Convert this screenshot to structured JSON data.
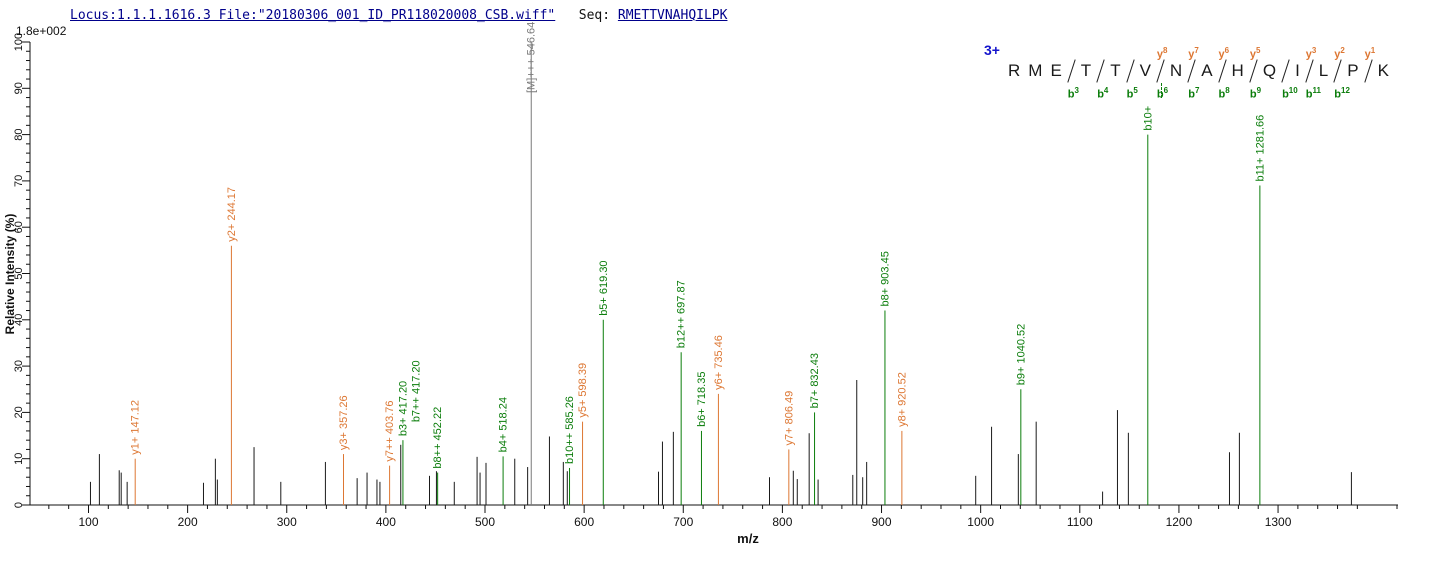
{
  "header": {
    "locus_file": "Locus:1.1.1.1616.3 File:\"20180306_001_ID_PR118020008_CSB.wiff\"",
    "separator": "   ",
    "seq_label": "Seq: ",
    "seq_value": "RMETTVNAHQILPK"
  },
  "colors": {
    "header_link": "#00008B",
    "charge_blue": "#1414CC",
    "y_ion": "#DD7733",
    "b_ion": "#0B7D0B",
    "precursor": "#7A7A7A",
    "peak_black": "#1A1A1A"
  },
  "sequence_panel": {
    "charge_label": "3+",
    "residues": [
      "R",
      "M",
      "E",
      "T",
      "T",
      "V",
      "N",
      "A",
      "H",
      "Q",
      "I",
      "L",
      "P",
      "K"
    ],
    "gaps": [
      {
        "after": 3,
        "b": "b3"
      },
      {
        "after": 4,
        "b": "b4"
      },
      {
        "after": 5,
        "b": "b5"
      },
      {
        "after": 6,
        "b": "b6",
        "y": "y8",
        "dashed": true
      },
      {
        "after": 7,
        "b": "b7",
        "y": "y7"
      },
      {
        "after": 8,
        "b": "b8",
        "y": "y6"
      },
      {
        "after": 9,
        "b": "b9",
        "y": "y5"
      },
      {
        "after": 10,
        "b": "b10"
      },
      {
        "after": 11,
        "b": "b11",
        "y": "y3"
      },
      {
        "after": 12,
        "b": "b12",
        "y": "y2"
      },
      {
        "after": 13,
        "y": "y1"
      }
    ]
  },
  "chart_data": {
    "type": "bar",
    "subtype": "mass-spectrum-stick-plot",
    "title": "",
    "xlabel": "m/z",
    "ylabel": "Relative  Intensity (%)",
    "scale_note": "1.8e+002",
    "xlim": [
      41,
      1421
    ],
    "ylim": [
      0,
      100
    ],
    "x_major_ticks": [
      100,
      200,
      300,
      400,
      500,
      600,
      700,
      800,
      900,
      1000,
      1100,
      1200,
      1300
    ],
    "x_minor_step": 20,
    "y_major_ticks": [
      0,
      10,
      20,
      30,
      40,
      50,
      60,
      70,
      80,
      90,
      100
    ],
    "y_minor_step": 2,
    "grid": false,
    "legend": "none",
    "annotated_peaks": [
      {
        "series": "y",
        "label": "y1+ 147.12",
        "mz": 147.12,
        "intensity": 10
      },
      {
        "series": "y",
        "label": "y2+ 244.17",
        "mz": 244.17,
        "intensity": 56
      },
      {
        "series": "y",
        "label": "y3+ 357.26",
        "mz": 357.26,
        "intensity": 11
      },
      {
        "series": "y",
        "label": "y7++ 403.76",
        "mz": 403.76,
        "intensity": 8.5
      },
      {
        "series": "b",
        "label": "b3+ 417.20",
        "mz": 417.2,
        "intensity": 14
      },
      {
        "series": "b",
        "label": "b7++ 417.20",
        "mz": 417.2,
        "intensity": 14,
        "no_stick": true,
        "dx": 13,
        "dy": -14
      },
      {
        "series": "b",
        "label": "b8++ 452.22",
        "mz": 452.22,
        "intensity": 7
      },
      {
        "series": "b",
        "label": "b4+ 518.24",
        "mz": 518.24,
        "intensity": 10.5
      },
      {
        "series": "M",
        "label": "[M]+++ 546.64",
        "mz": 546.64,
        "intensity": 100,
        "dy": 55
      },
      {
        "series": "b",
        "label": "b10++ 585.26",
        "mz": 585.26,
        "intensity": 8
      },
      {
        "series": "y",
        "label": "y5+ 598.39",
        "mz": 598.39,
        "intensity": 18
      },
      {
        "series": "b",
        "label": "b5+ 619.30",
        "mz": 619.3,
        "intensity": 40
      },
      {
        "series": "b",
        "label": "b12++ 697.87",
        "mz": 697.87,
        "intensity": 33
      },
      {
        "series": "b",
        "label": "b6+ 718.35",
        "mz": 718.35,
        "intensity": 16
      },
      {
        "series": "y",
        "label": "y6+ 735.46",
        "mz": 735.46,
        "intensity": 24
      },
      {
        "series": "y",
        "label": "y7+ 806.49",
        "mz": 806.49,
        "intensity": 12
      },
      {
        "series": "b",
        "label": "b7+ 832.43",
        "mz": 832.43,
        "intensity": 20
      },
      {
        "series": "b",
        "label": "b8+ 903.45",
        "mz": 903.45,
        "intensity": 42
      },
      {
        "series": "y",
        "label": "y8+ 920.52",
        "mz": 920.52,
        "intensity": 16
      },
      {
        "series": "b",
        "label": "b9+ 1040.52",
        "mz": 1040.52,
        "intensity": 25
      },
      {
        "series": "b",
        "label": "b10+",
        "mz": 1168.6,
        "intensity": 80
      },
      {
        "series": "b",
        "label": "b11+ 1281.66",
        "mz": 1281.66,
        "intensity": 69
      }
    ],
    "unlabeled_peaks": [
      [
        102,
        5
      ],
      [
        111,
        11
      ],
      [
        131,
        7.5
      ],
      [
        133,
        7
      ],
      [
        139,
        5
      ],
      [
        216,
        4.8
      ],
      [
        228,
        10
      ],
      [
        230,
        5.5
      ],
      [
        267,
        12.5
      ],
      [
        294,
        5
      ],
      [
        339,
        9.3
      ],
      [
        371,
        5.8
      ],
      [
        381,
        7
      ],
      [
        391,
        5.5
      ],
      [
        394,
        5
      ],
      [
        415,
        13
      ],
      [
        444,
        6.3
      ],
      [
        451,
        7.3
      ],
      [
        469,
        5
      ],
      [
        492,
        10.4
      ],
      [
        495,
        7
      ],
      [
        501,
        9.1
      ],
      [
        530,
        10
      ],
      [
        543,
        8.2
      ],
      [
        565,
        14.8
      ],
      [
        579,
        9.3
      ],
      [
        583,
        7.3
      ],
      [
        675,
        7.2
      ],
      [
        679,
        13.7
      ],
      [
        690,
        15.8
      ],
      [
        787,
        6
      ],
      [
        811,
        7.4
      ],
      [
        815,
        5.6
      ],
      [
        827,
        15.5
      ],
      [
        836,
        5.5
      ],
      [
        871,
        6.5
      ],
      [
        875,
        27
      ],
      [
        881,
        6
      ],
      [
        885,
        9.3
      ],
      [
        995,
        6.3
      ],
      [
        1011,
        16.9
      ],
      [
        1038,
        11
      ],
      [
        1056,
        18
      ],
      [
        1123,
        2.9
      ],
      [
        1138,
        20.5
      ],
      [
        1149,
        15.6
      ],
      [
        1251,
        11.4
      ],
      [
        1261,
        15.6
      ],
      [
        1374,
        7.1
      ]
    ]
  }
}
